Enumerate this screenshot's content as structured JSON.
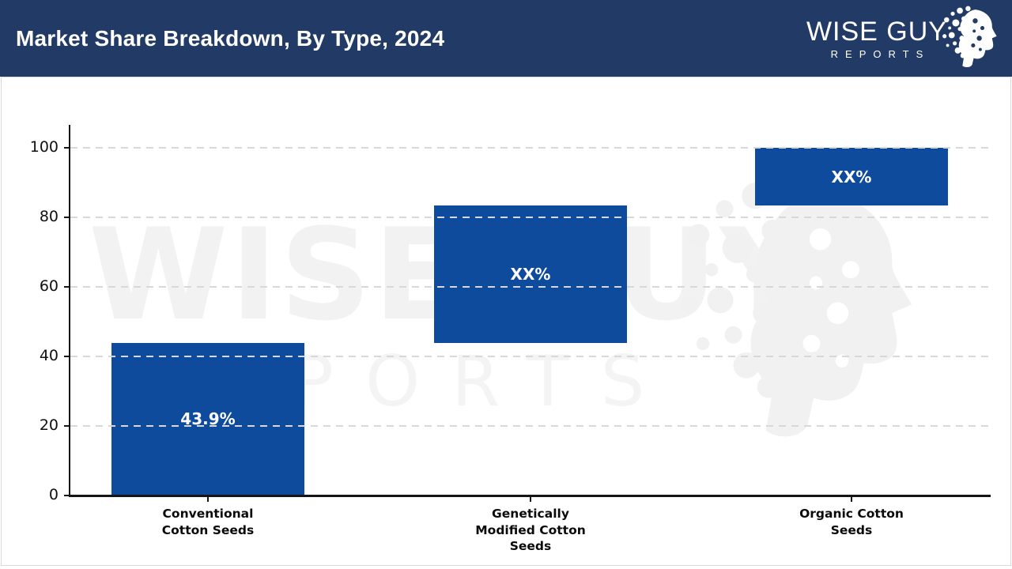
{
  "header": {
    "title": "Market Share Breakdown, By Type, 2024",
    "logo": {
      "line1": "WISE GUY",
      "line2": "REPORTS"
    }
  },
  "watermark": {
    "line1": "WISE GUY",
    "line2": "REPORTS"
  },
  "chart_data": {
    "type": "bar",
    "subtype": "stacked-waterfall",
    "title": "Market Share Breakdown, By Type, 2024",
    "categories": [
      "Conventional\nCotton Seeds",
      "Genetically\nModified Cotton\nSeeds",
      "Organic Cotton\nSeeds"
    ],
    "series": [
      {
        "name": "Market share (%)",
        "segments": [
          {
            "category": "Conventional Cotton Seeds",
            "from": 0,
            "to": 43.9,
            "label": "43.9%"
          },
          {
            "category": "Genetically Modified Cotton Seeds",
            "from": 43.9,
            "to": 83.4,
            "label": "XX%"
          },
          {
            "category": "Organic Cotton Seeds",
            "from": 83.4,
            "to": 100,
            "label": "XX%"
          }
        ]
      }
    ],
    "xlabel": "",
    "ylabel": "",
    "ylim": [
      0,
      100
    ],
    "yticks": [
      0,
      20,
      40,
      60,
      80,
      100
    ],
    "grid": "horizontal-dashed",
    "legend": "none",
    "bar_color": "#0e4b9d",
    "bar_label_color": "#ffffff",
    "axis_color": "#151515",
    "header_color": "#223a66"
  }
}
